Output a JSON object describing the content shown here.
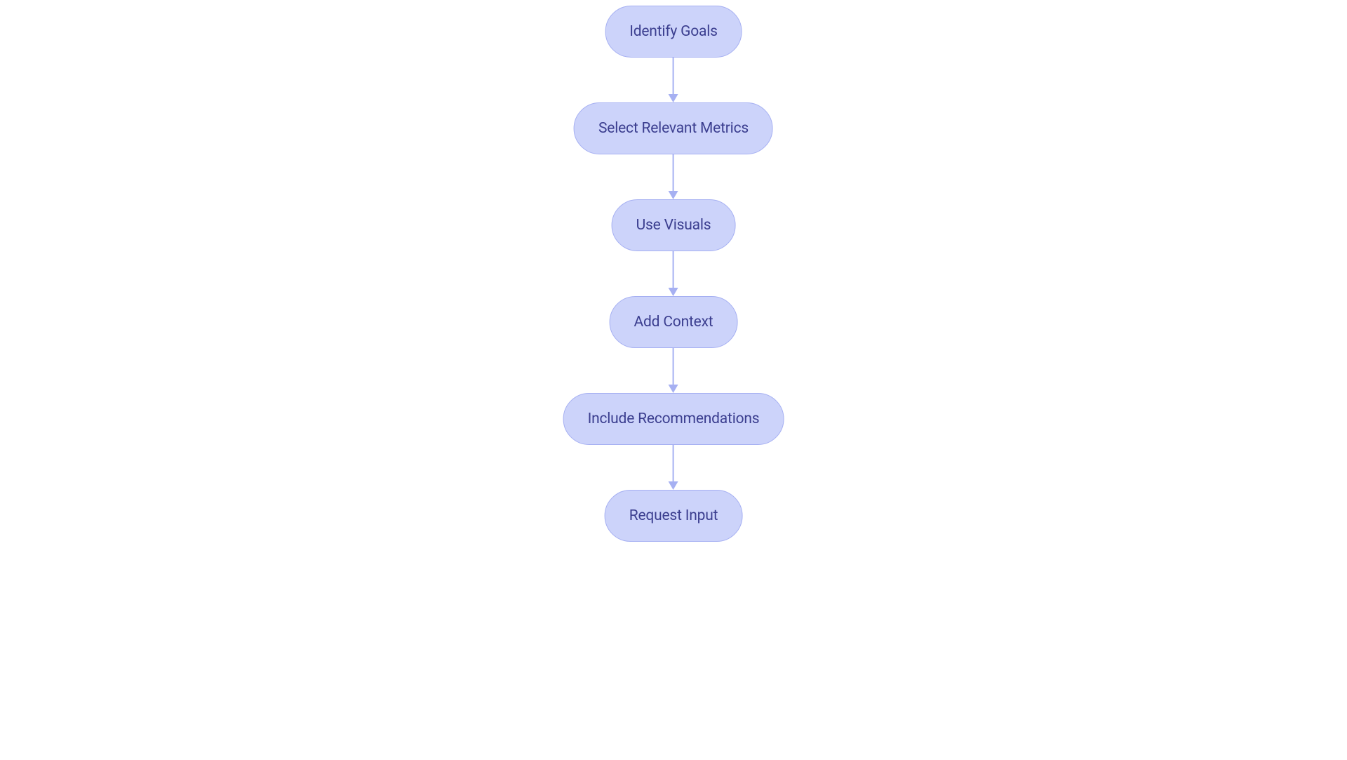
{
  "flowchart": {
    "type": "flowchart",
    "direction": "vertical",
    "background_color": "#ffffff",
    "node_fill": "#ccd3fa",
    "node_stroke": "#a6b0f2",
    "node_text_color": "#3b3e8f",
    "arrow_color": "#a6b0f2",
    "node_fontsize": 21,
    "node_border_radius": 999,
    "node_padding_x": 34,
    "node_padding_y": 24,
    "arrow_gap_height": 64,
    "arrow_line_width": 2,
    "arrow_head_width": 14,
    "arrow_head_height": 12,
    "nodes": [
      {
        "id": "n1",
        "label": "Identify Goals"
      },
      {
        "id": "n2",
        "label": "Select Relevant Metrics"
      },
      {
        "id": "n3",
        "label": "Use Visuals"
      },
      {
        "id": "n4",
        "label": "Add Context"
      },
      {
        "id": "n5",
        "label": "Include Recommendations"
      },
      {
        "id": "n6",
        "label": "Request Input"
      }
    ],
    "edges": [
      {
        "from": "n1",
        "to": "n2"
      },
      {
        "from": "n2",
        "to": "n3"
      },
      {
        "from": "n3",
        "to": "n4"
      },
      {
        "from": "n4",
        "to": "n5"
      },
      {
        "from": "n5",
        "to": "n6"
      }
    ]
  }
}
